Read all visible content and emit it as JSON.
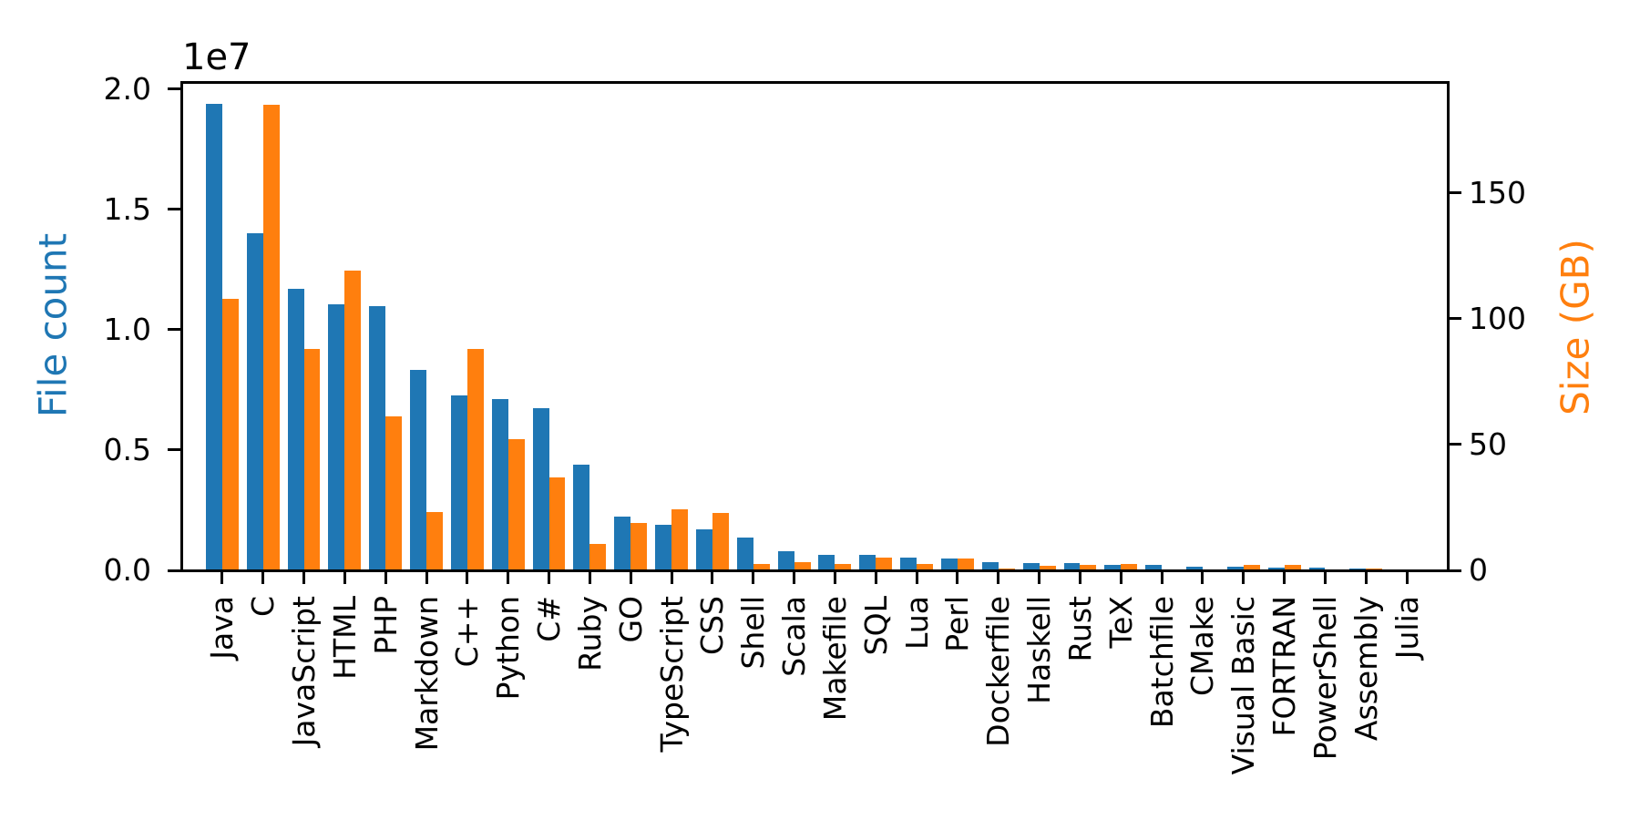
{
  "chart_data": {
    "type": "bar",
    "categories": [
      "Java",
      "C",
      "JavaScript",
      "HTML",
      "PHP",
      "Markdown",
      "C++",
      "Python",
      "C#",
      "Ruby",
      "GO",
      "TypeScript",
      "CSS",
      "Shell",
      "Scala",
      "Makefile",
      "SQL",
      "Lua",
      "Perl",
      "Dockerfile",
      "Haskell",
      "Rust",
      "TeX",
      "Batchfile",
      "CMake",
      "Visual Basic",
      "FORTRAN",
      "PowerShell",
      "Assembly",
      "Julia"
    ],
    "series": [
      {
        "name": "File count",
        "axis": "left",
        "color": "#1f77b4",
        "values": [
          19400000,
          14000000,
          11700000,
          11050000,
          11000000,
          8350000,
          7280000,
          7120000,
          6750000,
          4400000,
          2250000,
          1900000,
          1700000,
          1350000,
          800000,
          630000,
          630000,
          540000,
          480000,
          330000,
          300000,
          290000,
          230000,
          220000,
          150000,
          140000,
          130000,
          120000,
          90000,
          50000
        ]
      },
      {
        "name": "Size (GB)",
        "axis": "right",
        "color": "#ff7f0e",
        "values": [
          108,
          185,
          88,
          119,
          61,
          23,
          88,
          52,
          37,
          10.5,
          19,
          24.3,
          22.8,
          2.5,
          3.4,
          2.5,
          5.2,
          2.4,
          4.8,
          0.7,
          1.8,
          2.3,
          2.4,
          0.4,
          0.4,
          2.3,
          2.1,
          0.5,
          0.6,
          0.2
        ]
      }
    ],
    "left_axis": {
      "label": "File count",
      "offset_text": "1e7",
      "tick_labels": [
        "0.0",
        "0.5",
        "1.0",
        "1.5",
        "2.0"
      ],
      "tick_values": [
        0,
        5000000,
        10000000,
        15000000,
        20000000
      ],
      "range_max": 20300000,
      "color": "#1f77b4"
    },
    "right_axis": {
      "label": "Size (GB)",
      "tick_labels": [
        "0",
        "50",
        "100",
        "150"
      ],
      "tick_values": [
        0,
        50,
        100,
        150
      ],
      "range_max": 194,
      "color": "#ff7f0e"
    },
    "title": "",
    "xlabel": "",
    "grid": false
  }
}
